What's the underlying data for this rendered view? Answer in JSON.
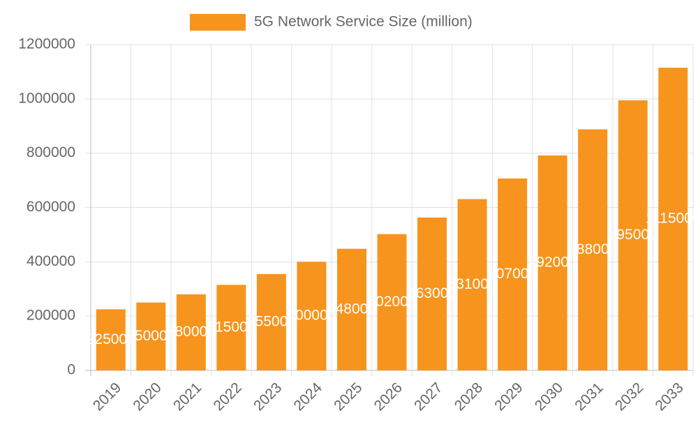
{
  "chart_data": {
    "type": "bar",
    "legend_label": "5G Network Service Size (million)",
    "color": "#f7941d",
    "categories": [
      "2019",
      "2020",
      "2021",
      "2022",
      "2023",
      "2024",
      "2025",
      "2026",
      "2027",
      "2028",
      "2029",
      "2030",
      "2031",
      "2032",
      "2033"
    ],
    "values": [
      225000,
      250000,
      280000,
      315000,
      355000,
      400000,
      448000,
      502000,
      563000,
      631000,
      707000,
      792000,
      888000,
      995000,
      1115000
    ],
    "ylim": [
      0,
      1200000
    ],
    "yticks": [
      0,
      200000,
      400000,
      600000,
      800000,
      1000000,
      1200000
    ],
    "grid": true
  }
}
